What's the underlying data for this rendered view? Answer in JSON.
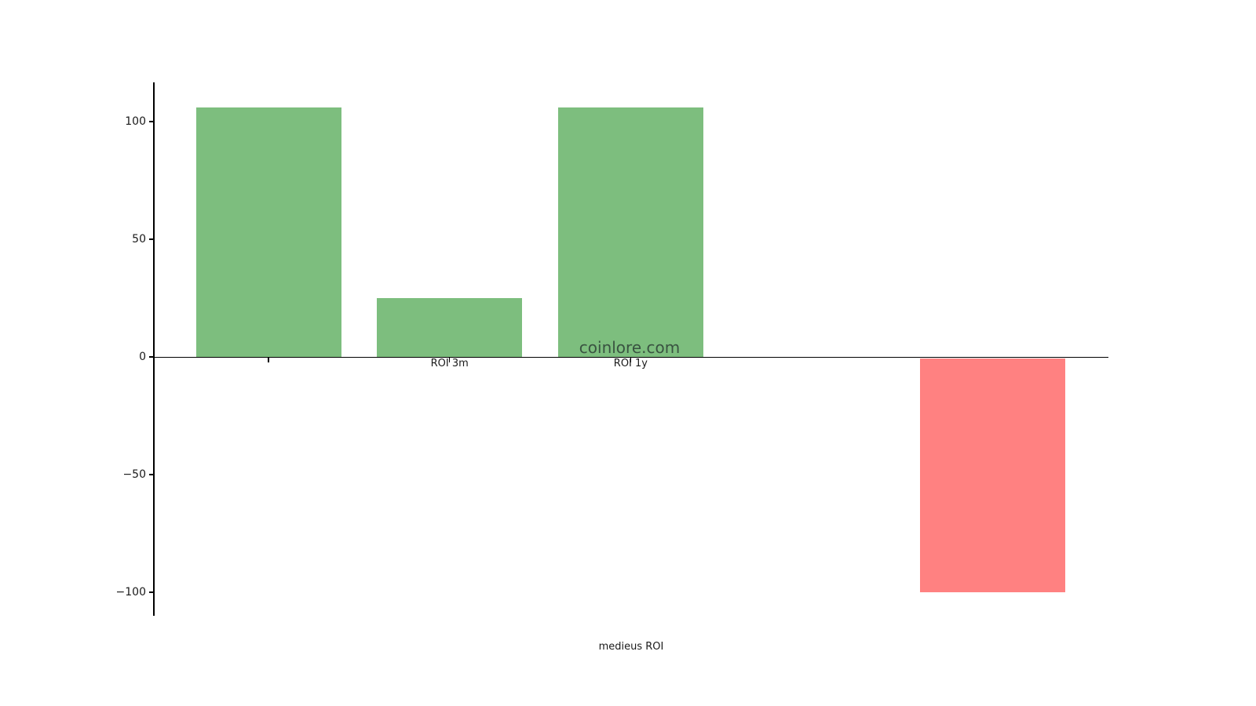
{
  "page": {
    "background": "#ffffff",
    "watermark": "coinlore.com"
  },
  "chart_data": {
    "type": "bar",
    "title": "",
    "xlabel": "medieus ROI",
    "ylabel": "",
    "categories": [
      "",
      "ROI 3m",
      "ROI 1y",
      "",
      ""
    ],
    "values": [
      106,
      25,
      106,
      0,
      -100
    ],
    "positive_color": "#7dbe7e",
    "negative_color": "#ff8181",
    "axis_color": "#000000",
    "text_color": "#1a1a1a",
    "y_ticks": [
      100,
      50,
      0,
      -50,
      -100
    ],
    "y_tick_labels": [
      "100",
      "50",
      "0",
      "−50",
      "−100"
    ],
    "x_ticks_visible": [
      true,
      true,
      true,
      false,
      false
    ],
    "ylim": [
      -115,
      117
    ],
    "grid": false,
    "legend": null,
    "zero_line": true
  }
}
